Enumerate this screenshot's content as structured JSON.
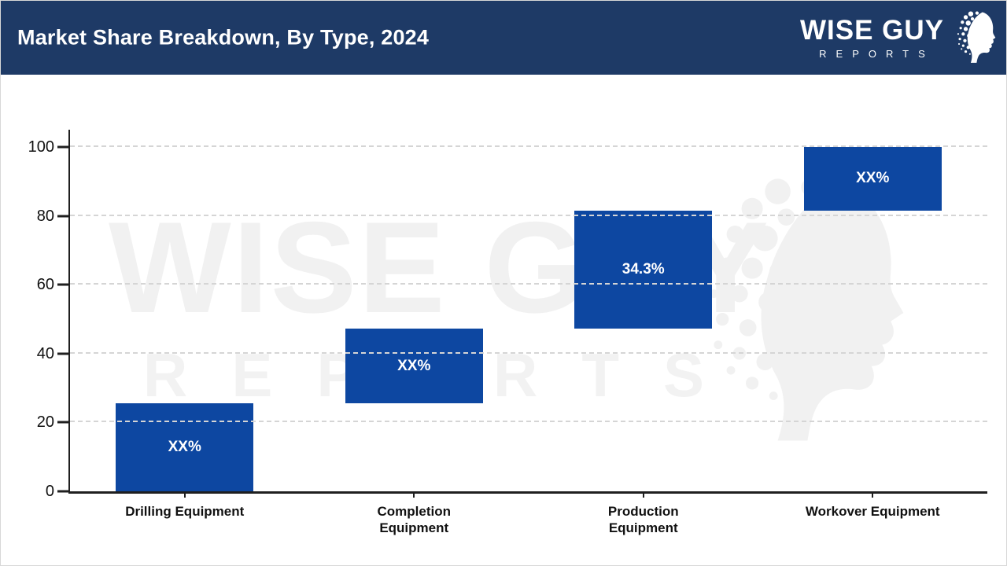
{
  "header": {
    "title": "Market Share Breakdown, By Type, 2024",
    "logo": {
      "name": "WISE GUY",
      "subtitle": "REPORTS"
    }
  },
  "watermark": {
    "line1": "WISE GUY",
    "line2": "REPORTS"
  },
  "chart_data": {
    "type": "bar",
    "subtype": "floating-segment-waterfall",
    "title": "Market Share Breakdown, By Type, 2024",
    "categories": [
      "Drilling Equipment",
      "Completion\nEquipment",
      "Production\nEquipment",
      "Workover Equipment"
    ],
    "segments": [
      {
        "category": "Drilling Equipment",
        "start": 0,
        "end": 25.6,
        "label": "XX%"
      },
      {
        "category": "Completion Equipment",
        "start": 25.6,
        "end": 47.2,
        "label": "XX%"
      },
      {
        "category": "Production Equipment",
        "start": 47.2,
        "end": 81.5,
        "label": "34.3%"
      },
      {
        "category": "Workover Equipment",
        "start": 81.5,
        "end": 100,
        "label": "XX%"
      }
    ],
    "xlabel": "",
    "ylabel": "",
    "ylim": [
      0,
      105
    ],
    "yticks": [
      0,
      20,
      40,
      60,
      80,
      100
    ],
    "grid": "horizontal-dashed",
    "legend": "none",
    "bar_width_fraction": 0.6,
    "colors": {
      "bar": "#0d47a1",
      "bar_label": "#ffffff",
      "header_bg": "#1e3a66",
      "header_text": "#ffffff",
      "grid": "#d5d5d5",
      "axis": "#1f1f1f",
      "tick_text": "#111111",
      "watermark": "#f1f1f1"
    }
  }
}
